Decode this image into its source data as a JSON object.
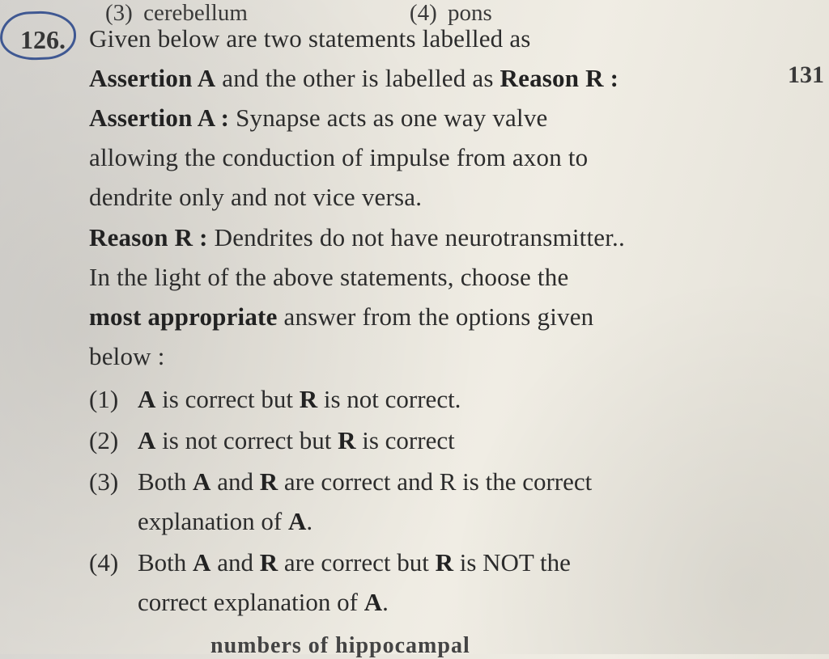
{
  "prev_question": {
    "option3_num": "(3)",
    "option3_text": "cerebellum",
    "option4_num": "(4)",
    "option4_text": "pons"
  },
  "question": {
    "number": "126.",
    "intro_line1": "Given below are two statements labelled as",
    "intro_line2_pre": "Assertion A",
    "intro_line2_mid": " and the other is labelled as ",
    "intro_line2_post": "Reason R :",
    "assertion_label": "Assertion A : ",
    "assertion_text1": "Synapse acts as one way valve",
    "assertion_text2": "allowing the conduction of impulse from axon to",
    "assertion_text3": "dendrite only and not vice versa.",
    "reason_label": "Reason R : ",
    "reason_text": "Dendrites do not have neurotransmitter..",
    "instruct1": "In the light of the above statements, choose the",
    "instruct2_pre": "most appropriate",
    "instruct2_post": " answer from the options given",
    "instruct3": "below :"
  },
  "options": {
    "o1_num": "(1)",
    "o1_text_pre": "A",
    "o1_text_mid": " is correct but ",
    "o1_text_post": "R",
    "o1_text_end": " is not correct.",
    "o2_num": "(2)",
    "o2_text_pre": "A",
    "o2_text_mid": " is not correct but ",
    "o2_text_post": "R",
    "o2_text_end": " is correct",
    "o3_num": "(3)",
    "o3_text_1": "Both ",
    "o3_text_2": "A",
    "o3_text_3": " and ",
    "o3_text_4": "R",
    "o3_text_5": " are correct and R is the correct",
    "o3_line2_1": "explanation of ",
    "o3_line2_2": "A",
    "o3_line2_3": ".",
    "o4_num": "(4)",
    "o4_text_1": "Both ",
    "o4_text_2": "A",
    "o4_text_3": " and ",
    "o4_text_4": "R",
    "o4_text_5": " are correct but ",
    "o4_text_6": "R",
    "o4_text_7": " is NOT the",
    "o4_line2_1": "correct explanation of ",
    "o4_line2_2": "A",
    "o4_line2_3": "."
  },
  "side_number": "131",
  "bottom_cut": "numbers of hippocampal",
  "colors": {
    "circle_pen": "#2f4a8c",
    "text": "#2a2a2a",
    "bg_light": "#f0ede4",
    "bg_dark": "#d8d6d2"
  }
}
